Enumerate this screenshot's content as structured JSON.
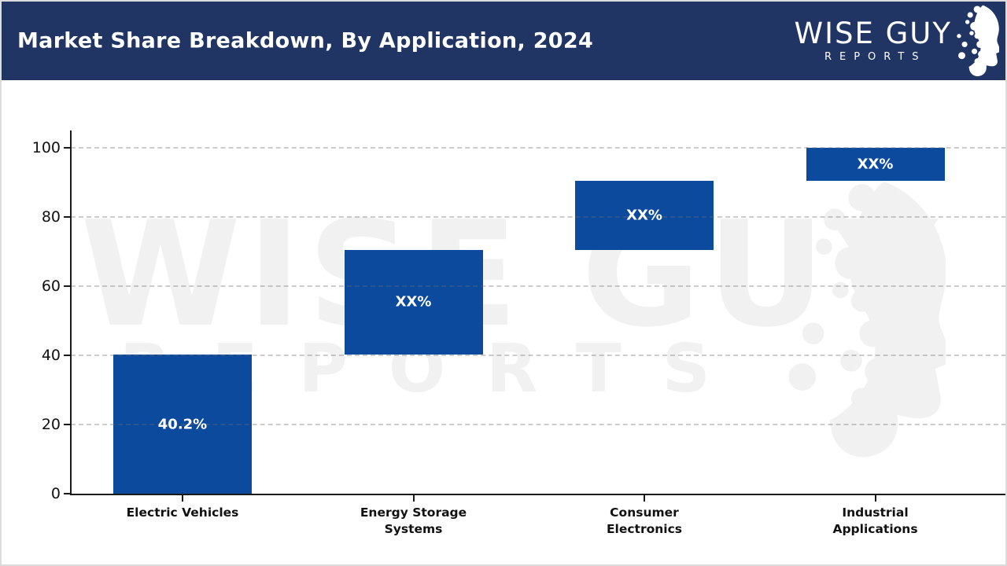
{
  "header": {
    "title": "Market Share Breakdown, By Application, 2024",
    "logo": {
      "line1": "WISE GUY",
      "line2": "REPORTS"
    }
  },
  "watermark": {
    "line1": "WISE GUY",
    "line2": "REPORTS"
  },
  "chart_data": {
    "type": "bar",
    "subtype": "waterfall",
    "title": "Market Share Breakdown, By Application, 2024",
    "categories": [
      "Electric Vehicles",
      "Energy Storage\nSystems",
      "Consumer\nElectronics",
      "Industrial\nApplications"
    ],
    "segments": [
      {
        "category": "Electric Vehicles",
        "start": 0,
        "end": 40.2,
        "label": "40.2%"
      },
      {
        "category": "Energy Storage Systems",
        "start": 40.2,
        "end": 70.5,
        "label": "XX%"
      },
      {
        "category": "Consumer Electronics",
        "start": 70.5,
        "end": 90.5,
        "label": "XX%"
      },
      {
        "category": "Industrial Applications",
        "start": 90.5,
        "end": 100,
        "label": "XX%"
      }
    ],
    "yticks": [
      0,
      20,
      40,
      60,
      80,
      100
    ],
    "ylim": [
      0,
      100
    ],
    "grid": "horizontal-dashed",
    "legend": "none",
    "bar_color": "#0c4a9e",
    "bar_label_color": "#ffffff",
    "axis_color": "#1a1a1a",
    "header_color": "#213564",
    "watermark_color": "#f1f1f1"
  }
}
